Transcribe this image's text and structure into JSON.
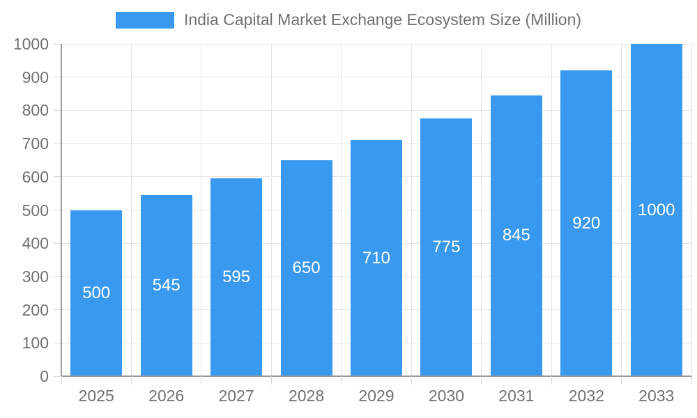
{
  "legend": {
    "label": "India Capital Market Exchange Ecosystem Size (Million)",
    "swatch_color": "#3999ee"
  },
  "chart_data": {
    "type": "bar",
    "title": "India Capital Market Exchange Ecosystem Size (Million)",
    "categories": [
      "2025",
      "2026",
      "2027",
      "2028",
      "2029",
      "2030",
      "2031",
      "2032",
      "2033"
    ],
    "values": [
      500,
      545,
      595,
      650,
      710,
      775,
      845,
      920,
      1000
    ],
    "xlabel": "",
    "ylabel": "",
    "ylim": [
      0,
      1000
    ],
    "ytick_step": 100,
    "ytick_labels": [
      "0",
      "100",
      "200",
      "300",
      "400",
      "500",
      "600",
      "700",
      "800",
      "900",
      "1000"
    ],
    "grid": true,
    "legend_position": "top",
    "bar_color": "#3999ee",
    "value_label_color": "#ffffff",
    "axis_text_color": "#707070",
    "grid_color": "#e5e5e5",
    "axis_line_color": "#999999",
    "value_labels_shown": true,
    "value_label_placement": "center-inside"
  }
}
